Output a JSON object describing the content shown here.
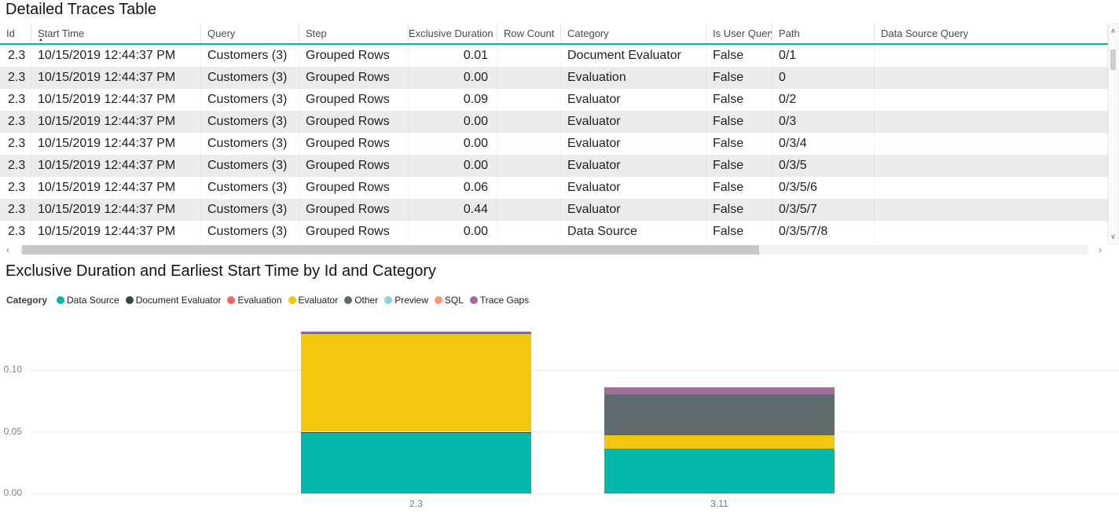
{
  "table": {
    "title": "Detailed Traces Table",
    "columns": [
      {
        "label": "Id"
      },
      {
        "label": "Start Time",
        "sorted": "asc"
      },
      {
        "label": "Query"
      },
      {
        "label": "Step"
      },
      {
        "label": "Exclusive Duration (%)"
      },
      {
        "label": "Row Count"
      },
      {
        "label": "Category"
      },
      {
        "label": "Is User Query"
      },
      {
        "label": "Path"
      },
      {
        "label": "Data Source Query"
      }
    ],
    "rows": [
      [
        "2.3",
        "10/15/2019 12:44:37 PM",
        "Customers (3)",
        "Grouped Rows",
        "0.01",
        "",
        "Document Evaluator",
        "False",
        "0/1",
        ""
      ],
      [
        "2.3",
        "10/15/2019 12:44:37 PM",
        "Customers (3)",
        "Grouped Rows",
        "0.00",
        "",
        "Evaluation",
        "False",
        "0",
        ""
      ],
      [
        "2.3",
        "10/15/2019 12:44:37 PM",
        "Customers (3)",
        "Grouped Rows",
        "0.09",
        "",
        "Evaluator",
        "False",
        "0/2",
        ""
      ],
      [
        "2.3",
        "10/15/2019 12:44:37 PM",
        "Customers (3)",
        "Grouped Rows",
        "0.00",
        "",
        "Evaluator",
        "False",
        "0/3",
        ""
      ],
      [
        "2.3",
        "10/15/2019 12:44:37 PM",
        "Customers (3)",
        "Grouped Rows",
        "0.00",
        "",
        "Evaluator",
        "False",
        "0/3/4",
        ""
      ],
      [
        "2.3",
        "10/15/2019 12:44:37 PM",
        "Customers (3)",
        "Grouped Rows",
        "0.00",
        "",
        "Evaluator",
        "False",
        "0/3/5",
        ""
      ],
      [
        "2.3",
        "10/15/2019 12:44:37 PM",
        "Customers (3)",
        "Grouped Rows",
        "0.06",
        "",
        "Evaluator",
        "False",
        "0/3/5/6",
        ""
      ],
      [
        "2.3",
        "10/15/2019 12:44:37 PM",
        "Customers (3)",
        "Grouped Rows",
        "0.44",
        "",
        "Evaluator",
        "False",
        "0/3/5/7",
        ""
      ],
      [
        "2.3",
        "10/15/2019 12:44:37 PM",
        "Customers (3)",
        "Grouped Rows",
        "0.00",
        "",
        "Data Source",
        "False",
        "0/3/5/7/8",
        ""
      ]
    ]
  },
  "chart_data": {
    "type": "bar",
    "stacked": true,
    "title": "Exclusive Duration and Earliest Start Time by Id and Category",
    "legend_title": "Category",
    "legend_position": "top-left",
    "categories": [
      "2.3",
      "3.11"
    ],
    "series": [
      {
        "name": "Data Source",
        "color": "#01B8AA",
        "values": [
          0.049,
          0.036
        ]
      },
      {
        "name": "Document Evaluator",
        "color": "#374649",
        "values": [
          0.001,
          0
        ]
      },
      {
        "name": "Evaluation",
        "color": "#FD625E",
        "values": [
          0,
          0
        ]
      },
      {
        "name": "Evaluator",
        "color": "#F2C80F",
        "values": [
          0.079,
          0.011
        ]
      },
      {
        "name": "Other",
        "color": "#5F6B6D",
        "values": [
          0.001,
          0.033
        ]
      },
      {
        "name": "Preview",
        "color": "#8AD4EB",
        "values": [
          0,
          0
        ]
      },
      {
        "name": "SQL",
        "color": "#FE9666",
        "values": [
          0,
          0
        ]
      },
      {
        "name": "Trace Gaps",
        "color": "#A66999",
        "values": [
          0.001,
          0.006
        ]
      }
    ],
    "y_ticks": [
      0,
      0.05,
      0.1
    ],
    "y_tick_labels": [
      "0.00",
      "0.05",
      "0.10"
    ],
    "ylim": [
      0,
      0.132
    ],
    "grid": true
  },
  "accent_color": "#01B8AA",
  "icons": {
    "sort_ascending": "▲",
    "scroll_up": "∧",
    "scroll_down": "∨",
    "scroll_left": "‹",
    "scroll_right": "›"
  }
}
